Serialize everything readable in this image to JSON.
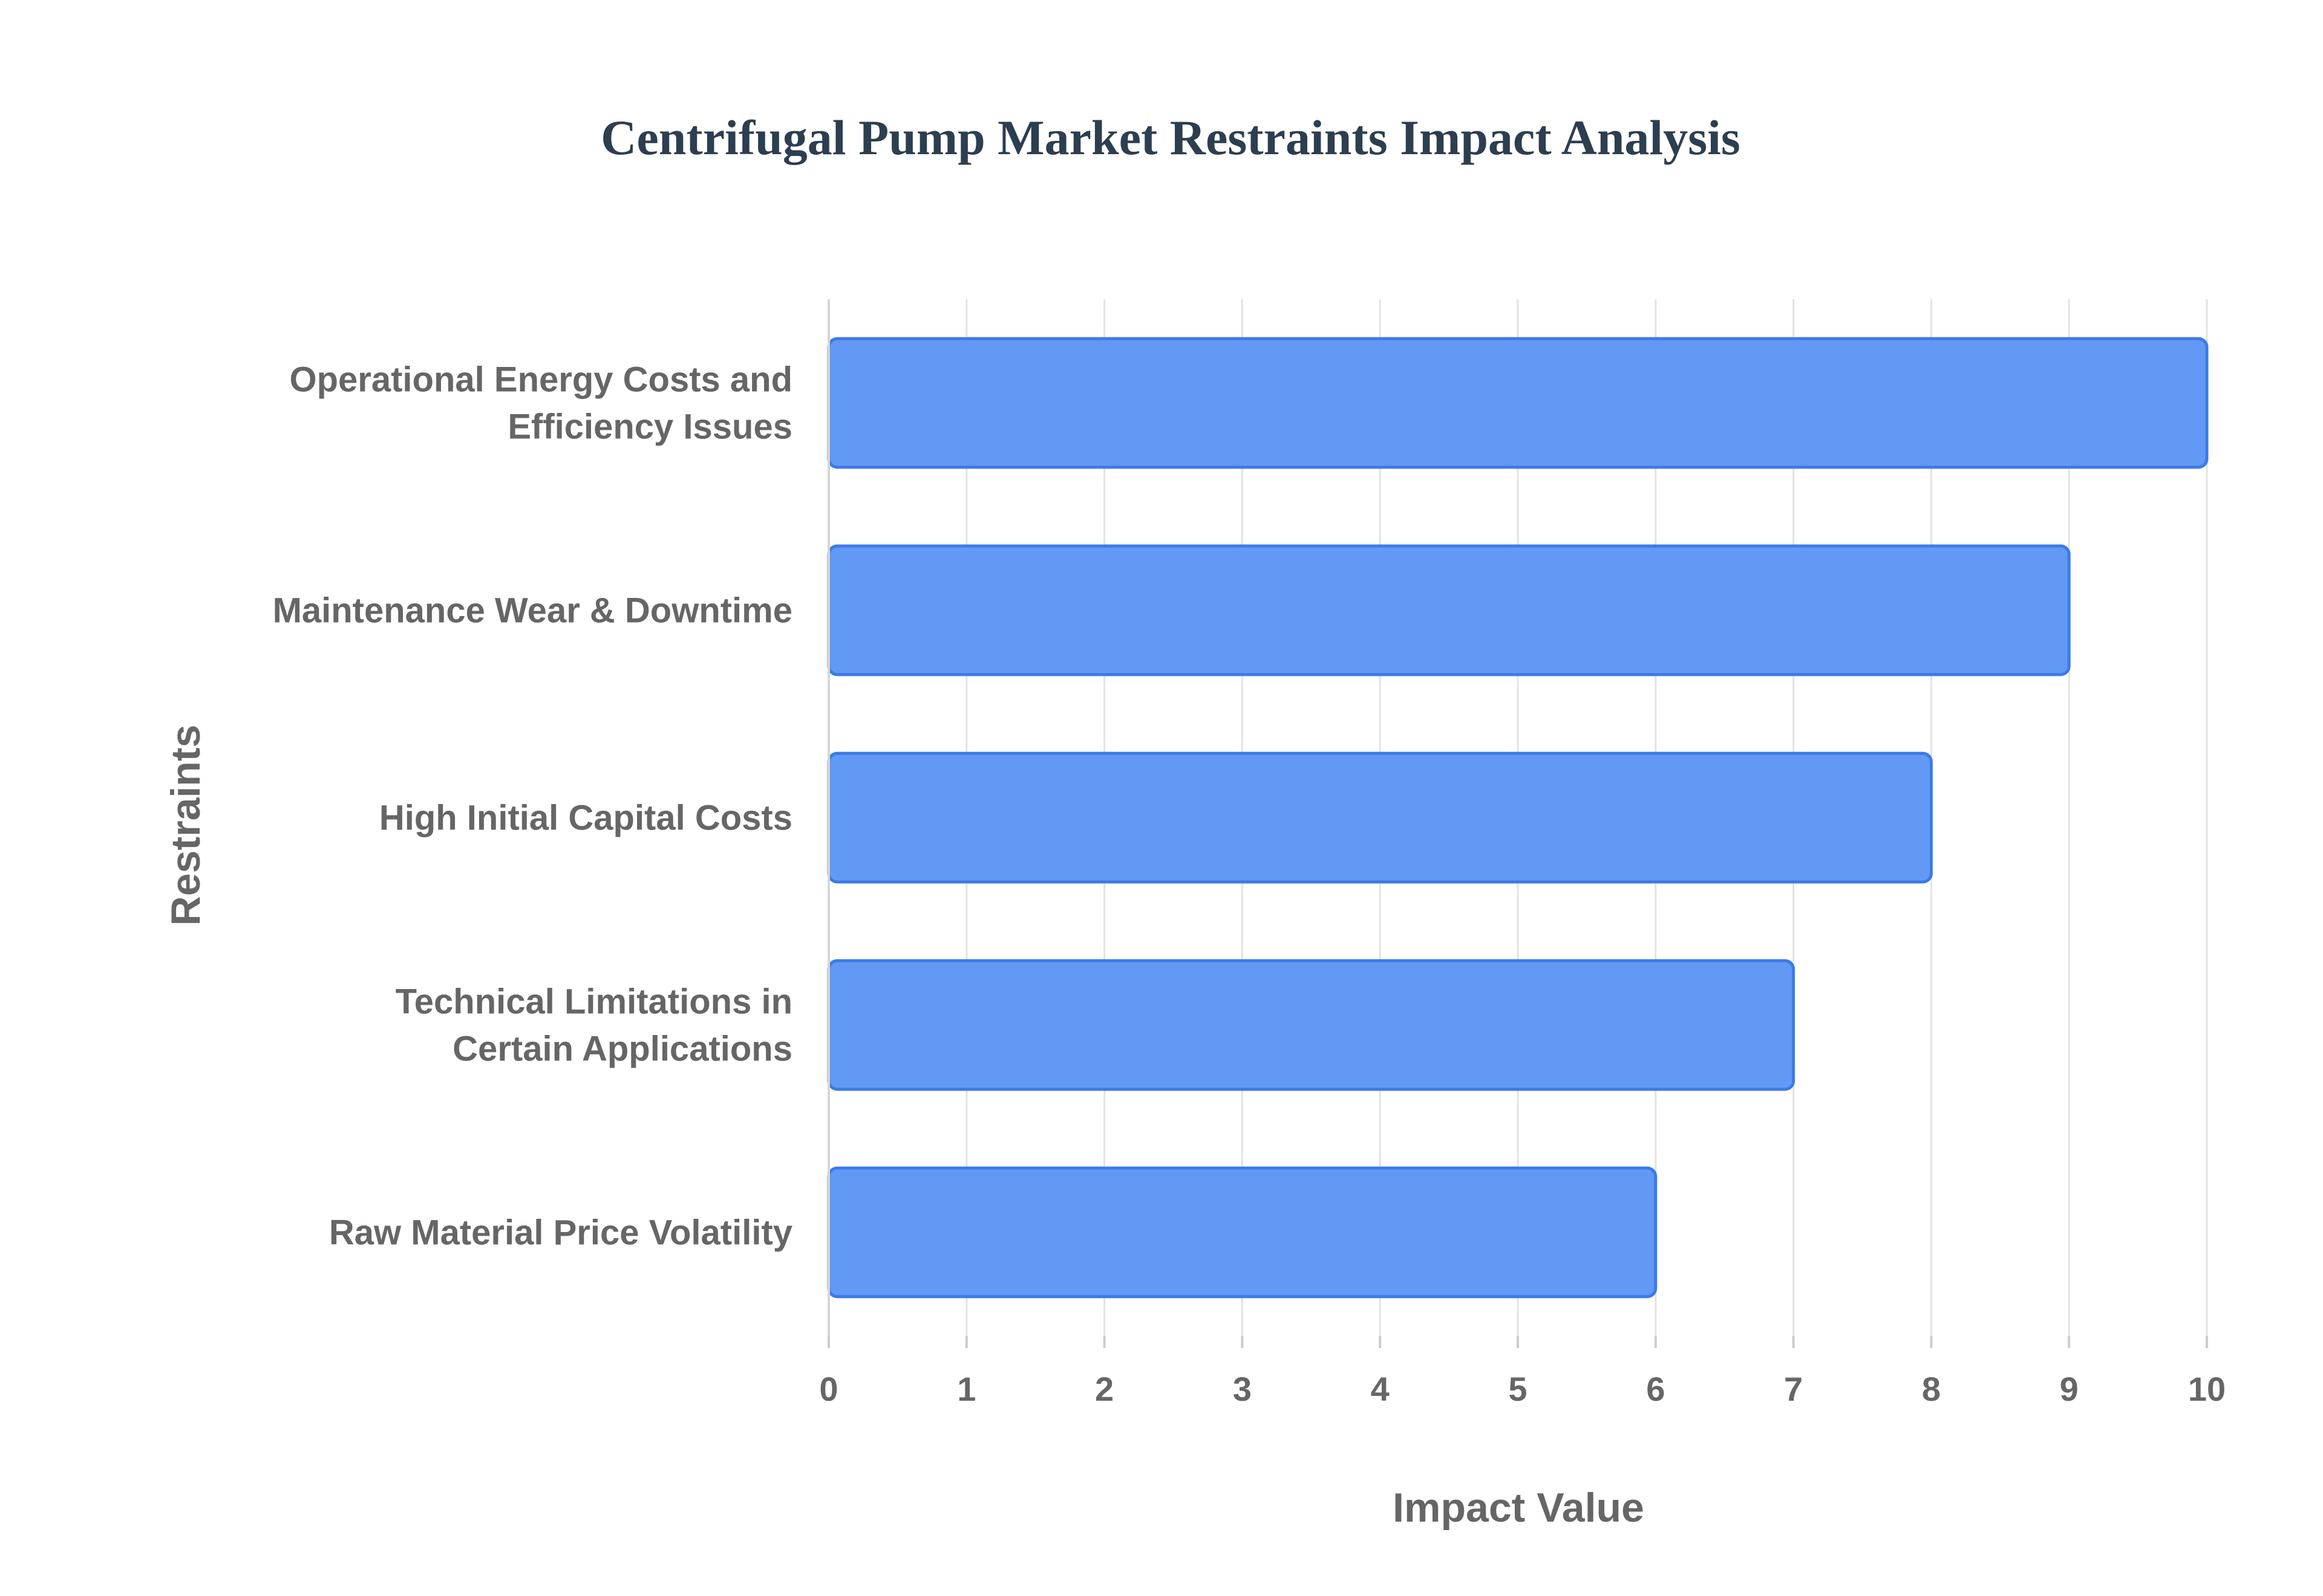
{
  "chart_data": {
    "type": "bar",
    "orientation": "horizontal",
    "title": "Centrifugal Pump Market Restraints Impact Analysis",
    "xlabel": "Impact Value",
    "ylabel": "Restraints",
    "categories": [
      [
        "Operational Energy Costs and",
        "Efficiency Issues"
      ],
      [
        "Maintenance Wear & Downtime"
      ],
      [
        "High Initial Capital Costs"
      ],
      [
        "Technical Limitations in",
        "Certain Applications"
      ],
      [
        "Raw Material Price Volatility"
      ]
    ],
    "values": [
      10,
      9,
      8,
      7,
      6
    ],
    "xlim": [
      0,
      10
    ],
    "xticks": [
      0,
      1,
      2,
      3,
      4,
      5,
      6,
      7,
      8,
      9,
      10
    ],
    "grid": true,
    "legend": "none",
    "colors": {
      "bar_fill": "#6199f5",
      "bar_stroke": "#3d7ae8",
      "title": "#2c3e50",
      "text": "#666666"
    }
  }
}
